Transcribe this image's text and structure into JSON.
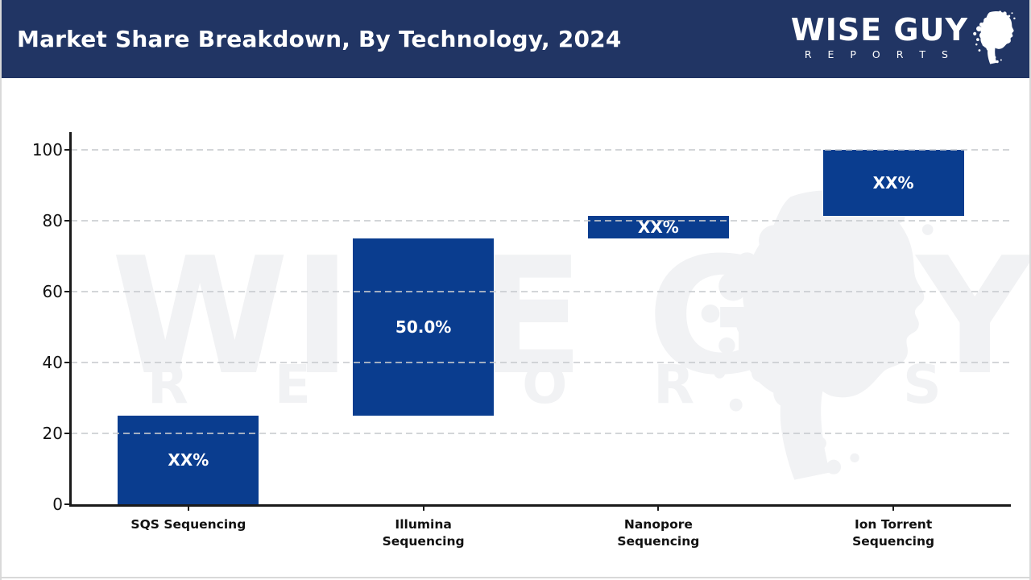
{
  "header": {
    "title": "Market Share Breakdown, By Technology, 2024",
    "logo_line1": "WISE GUY",
    "logo_line2": "R E P O R T S"
  },
  "watermark": {
    "line1": "WISE GUY",
    "line2": "R E P O R T S"
  },
  "colors": {
    "header_bg": "#213564",
    "bar": "#0a3d8f",
    "gridline": "#d5d5d5",
    "axis": "#1a1a1a",
    "watermark": "#f1f2f4"
  },
  "chart_data": {
    "type": "bar",
    "subtype": "waterfall",
    "title": "Market Share Breakdown, By Technology, 2024",
    "categories": [
      "SQS Sequencing",
      "Illumina Sequencing",
      "Nanopore Sequencing",
      "Ion Torrent Sequencing"
    ],
    "category_display": [
      "SQS Sequencing",
      "Illumina\nSequencing",
      "Nanopore\nSequencing",
      "Ion Torrent\nSequencing"
    ],
    "segments": [
      {
        "category": "SQS Sequencing",
        "start": 0,
        "end": 25,
        "label": "XX%"
      },
      {
        "category": "Illumina Sequencing",
        "start": 25,
        "end": 75,
        "label": "50.0%"
      },
      {
        "category": "Nanopore Sequencing",
        "start": 75,
        "end": 81.3,
        "label": "XX%"
      },
      {
        "category": "Ion Torrent Sequencing",
        "start": 81.3,
        "end": 100,
        "label": "XX%"
      }
    ],
    "xlabel": "",
    "ylabel": "",
    "yticks": [
      0,
      20,
      40,
      60,
      80,
      100
    ],
    "ylim": [
      0,
      105
    ],
    "grid": "horizontal-dashed",
    "legend": "none"
  }
}
